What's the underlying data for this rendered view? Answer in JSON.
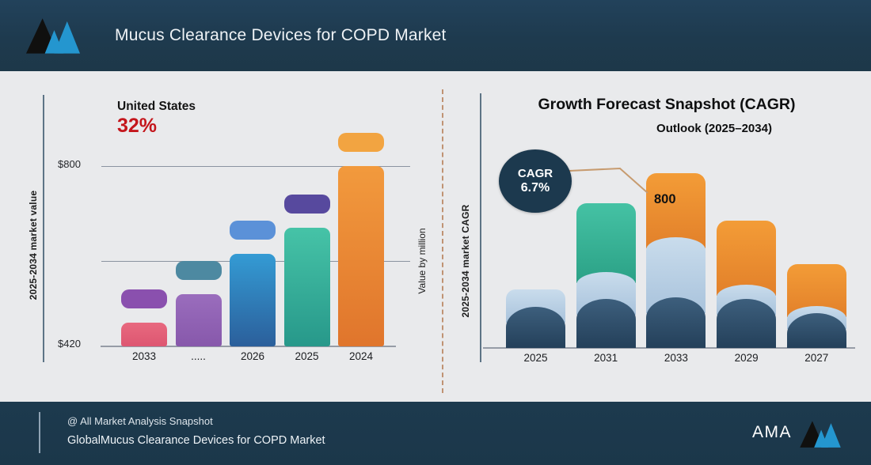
{
  "header": {
    "title": "Mucus Clearance Devices for COPD Market",
    "brand": "AMA"
  },
  "left_panel": {
    "region_label": "United States",
    "highlight_value": "32%",
    "y_axis_label": "2025-2034 market value",
    "secondary_axis_label": "Value by million"
  },
  "right_panel": {
    "title": "Growth Forecast Snapshot (CAGR)",
    "subtitle": "Outlook (2025–2034)",
    "y_axis_label": "2025-2034 market CAGR",
    "badge": {
      "line1": "CAGR",
      "line2": "6.7%"
    },
    "bar_annotation": "800"
  },
  "footer": {
    "line1": "@ All Market Analysis Snapshot",
    "line2": "GlobalMucus Clearance Devices for COPD Market",
    "brand": "AMA"
  },
  "colors": {
    "header_bg": "#1e3a4e",
    "content_bg": "#e9eaec",
    "accent_red": "#c4161c",
    "badge_navy": "#1c394e",
    "connector_tan": "#c79b6f",
    "divider_tan": "#b9855f",
    "logo_blue": "#2496cf",
    "logo_black": "#10100f"
  },
  "chart_data": [
    {
      "type": "bar",
      "panel": "left",
      "title": "United States",
      "highlight": "32%",
      "categories": [
        "2033",
        ".....",
        "2026",
        "2025",
        "2024"
      ],
      "values": [
        470,
        530,
        615,
        670,
        800
      ],
      "ylabel": "2025-2034 market value",
      "ylabel_secondary": "Value by million",
      "yticks": [
        "$800",
        "$420"
      ],
      "ylim": [
        420,
        800
      ],
      "grid": "horizontal",
      "legend": "none",
      "bar_colors": [
        [
          "#e8697f",
          "#dd5671"
        ],
        [
          "#9a6dbd",
          "#8758ab"
        ],
        [
          "#349bd4",
          "#2b5f9b"
        ],
        [
          "#46c3a7",
          "#27988a"
        ],
        [
          "#f29a3d",
          "#e0752c"
        ]
      ],
      "cap_colors": [
        "#8a50ae",
        "#4d89a1",
        "#5b91d8",
        "#57499e",
        "#f2a441"
      ]
    },
    {
      "type": "bar",
      "panel": "right",
      "stacked": true,
      "title": "Growth Forecast Snapshot (CAGR)",
      "subtitle": "Outlook (2025–2034)",
      "categories": [
        "2025",
        "2031",
        "2033",
        "2029",
        "2027"
      ],
      "series": [
        {
          "name": "base",
          "values": [
            116,
            152,
            159,
            152,
            87
          ]
        },
        {
          "name": "middle",
          "values": [
            152,
            145,
            297,
            87,
            54
          ]
        },
        {
          "name": "top",
          "values": [
            0,
            366,
            344,
            344,
            243
          ]
        }
      ],
      "totals": [
        268,
        663,
        800,
        583,
        384
      ],
      "annotations": [
        {
          "text": "800",
          "category": "2033"
        },
        {
          "text": "CAGR 6.7%",
          "type": "badge"
        }
      ],
      "ylabel": "2025-2034 market CAGR",
      "legend": "none",
      "segment_colors": {
        "base": [
          "#3d5f7d",
          "#24405a"
        ],
        "middle": [
          "#c9dcec",
          "#a9c3dc"
        ],
        "top_by_bar": [
          null,
          [
            "#45c2a4",
            "#2ba186"
          ],
          [
            "#f39c37",
            "#e2802a"
          ],
          [
            "#f39c37",
            "#e2802a"
          ],
          [
            "#f39c37",
            "#e2802a"
          ]
        ]
      }
    }
  ]
}
